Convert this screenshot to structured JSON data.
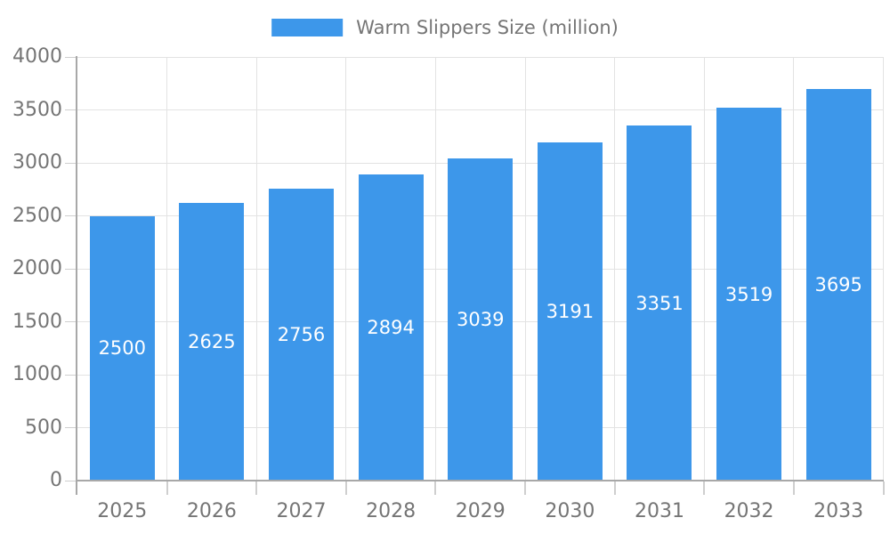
{
  "chart_data": {
    "type": "bar",
    "title": "Warm Slippers Size (million)",
    "legend_label": "Warm Slippers Size (million)",
    "legend_position": "top",
    "categories": [
      "2025",
      "2026",
      "2027",
      "2028",
      "2029",
      "2030",
      "2031",
      "2032",
      "2033"
    ],
    "series": [
      {
        "name": "Warm Slippers Size (million)",
        "values": [
          2500,
          2625,
          2756,
          2894,
          3039,
          3191,
          3351,
          3519,
          3695
        ]
      }
    ],
    "value_labels_shown": true,
    "xlabel": "",
    "ylabel": "",
    "ylim": [
      0,
      4000
    ],
    "ytick_step": 500,
    "ytick_labels": [
      "0",
      "500",
      "1000",
      "1500",
      "2000",
      "2500",
      "3000",
      "3500",
      "4000"
    ],
    "grid": true,
    "colors": {
      "bar": "#3D97EA",
      "value_label": "#FFFFFF",
      "axis_text": "#757575",
      "legend_text": "#757575",
      "axis_line": "#A8A8A8",
      "gridline": "#E3E3E3",
      "tick": "#CFCFCF",
      "background": "#FFFFFF"
    }
  }
}
